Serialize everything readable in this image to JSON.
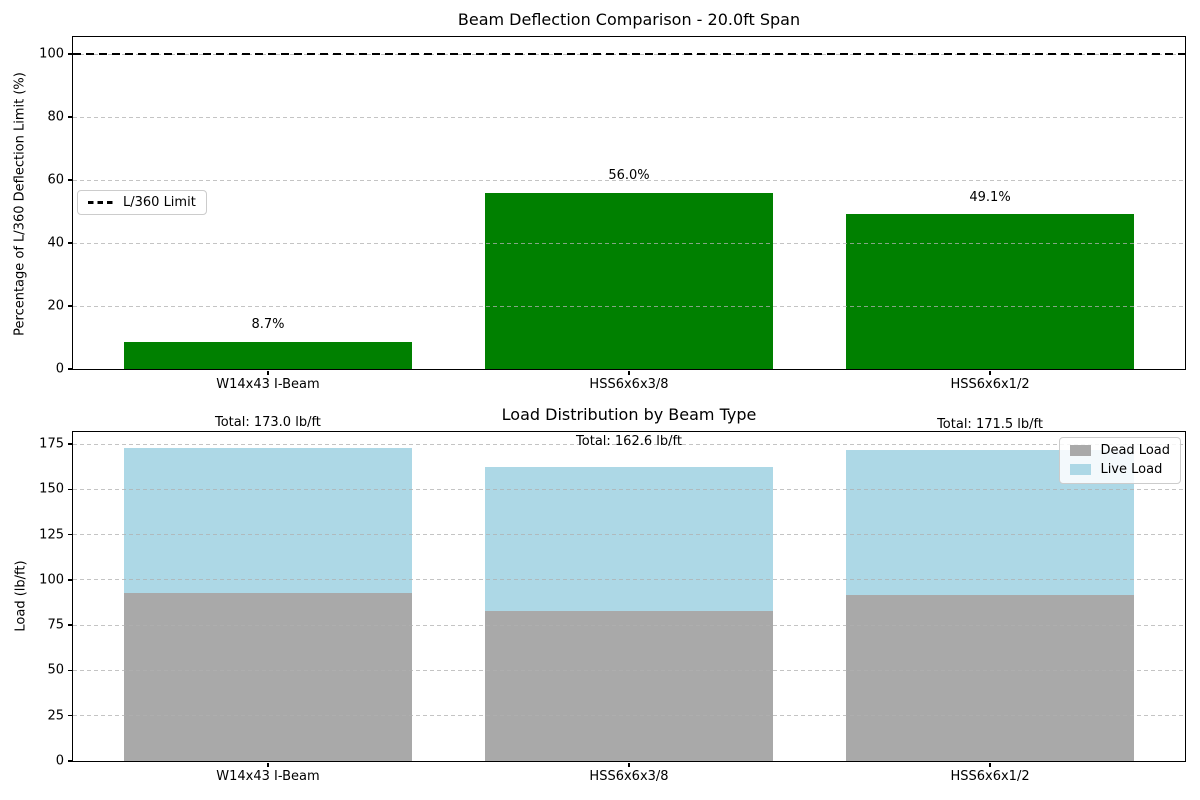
{
  "chart_data": [
    {
      "type": "bar",
      "title": "Beam Deflection Comparison - 20.0ft Span",
      "ylabel": "Percentage of L/360 Deflection Limit (%)",
      "categories": [
        "W14x43 I-Beam",
        "HSS6x6x3/8",
        "HSS6x6x1/2"
      ],
      "values": [
        8.7,
        56.0,
        49.1
      ],
      "bar_labels": [
        "8.7%",
        "56.0%",
        "49.1%"
      ],
      "bar_color": "#008000",
      "yticks": [
        0,
        20,
        40,
        60,
        80,
        100
      ],
      "ylim": [
        0,
        105.4
      ],
      "grid": "horizontal-dashed",
      "reference_line": {
        "value": 100,
        "label": "L/360 Limit",
        "color": "#000000",
        "style": "dashed"
      },
      "legend_position": "left-middle"
    },
    {
      "type": "stacked-bar",
      "title": "Load Distribution by Beam Type",
      "ylabel": "Load (lb/ft)",
      "categories": [
        "W14x43 I-Beam",
        "HSS6x6x3/8",
        "HSS6x6x1/2"
      ],
      "series": [
        {
          "name": "Dead Load",
          "color": "#a9a9a9",
          "values": [
            93.0,
            82.6,
            91.5
          ]
        },
        {
          "name": "Live Load",
          "color": "#add8e6",
          "values": [
            80.0,
            80.0,
            80.0
          ]
        }
      ],
      "totals": [
        173.0,
        162.6,
        171.5
      ],
      "total_labels": [
        "Total: 173.0 lb/ft",
        "Total: 162.6 lb/ft",
        "Total: 171.5 lb/ft"
      ],
      "yticks": [
        0,
        25,
        50,
        75,
        100,
        125,
        150,
        175
      ],
      "ylim": [
        0,
        181.7
      ],
      "grid": "horizontal-dashed",
      "legend_position": "top-right"
    }
  ],
  "style": {
    "grid_color": "#b0b0b0",
    "spine_color": "#000000",
    "background": "#ffffff"
  }
}
